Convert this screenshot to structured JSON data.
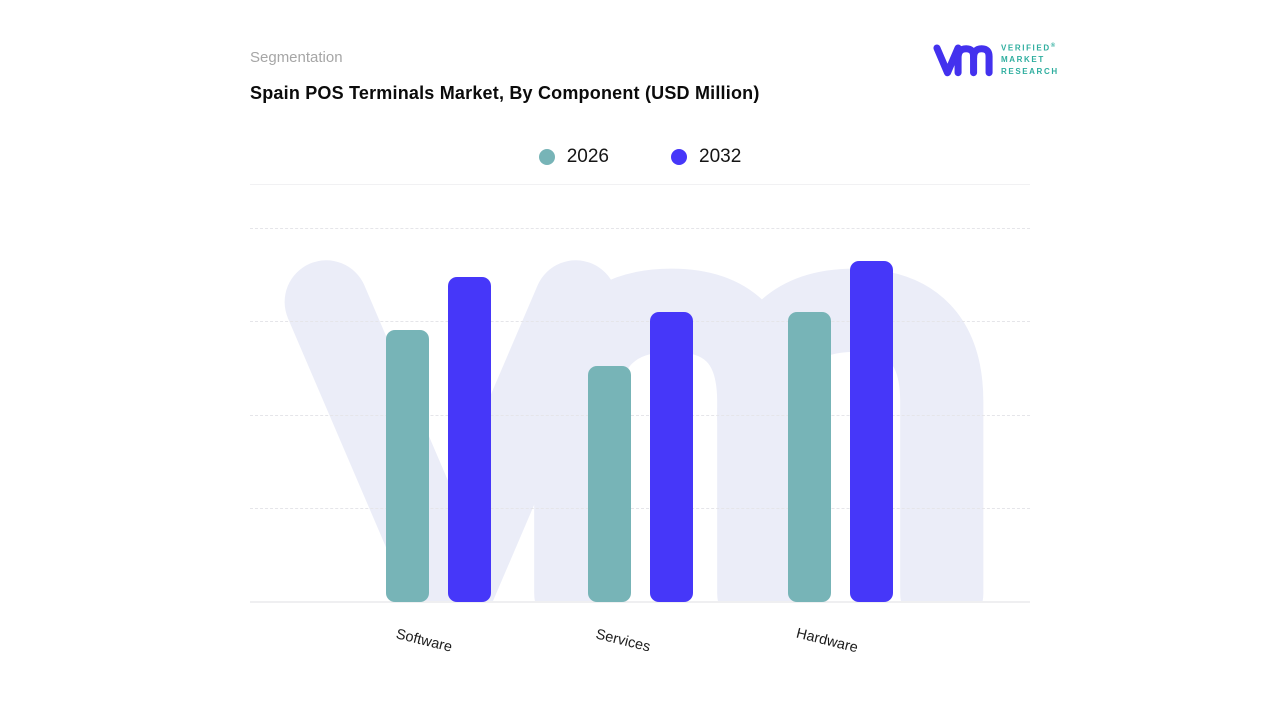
{
  "header": {
    "eyebrow": "Segmentation",
    "title": "Spain POS Terminals Market, By Component (USD Million)"
  },
  "logo": {
    "lines": [
      "VERIFIED",
      "MARKET",
      "RESEARCH"
    ],
    "registered_mark": "®",
    "mark_color": "#4331ee",
    "text_color": "#2fae9f"
  },
  "legend": [
    {
      "label": "2026",
      "color": "#77b4b7"
    },
    {
      "label": "2032",
      "color": "#4637f9"
    }
  ],
  "chart_data": {
    "type": "bar",
    "title": "Spain POS Terminals Market, By Component (USD Million)",
    "categories": [
      "Software",
      "Services",
      "Hardware"
    ],
    "series": [
      {
        "name": "2026",
        "color": "#77b4b7",
        "values": [
          65.0,
          56.4,
          69.3
        ]
      },
      {
        "name": "2032",
        "color": "#4637f9",
        "values": [
          77.7,
          69.5,
          81.5
        ]
      }
    ],
    "value_unit": "percent_of_plot_height",
    "xlabel": "",
    "ylabel": "",
    "y_axis_tick_labels": [],
    "legend_position": "top-center",
    "grid": "horizontal-dashed",
    "x_label_rotation_deg": 14
  },
  "watermark": {
    "name": "vmr-logo-watermark",
    "color": "#ebedf8"
  }
}
